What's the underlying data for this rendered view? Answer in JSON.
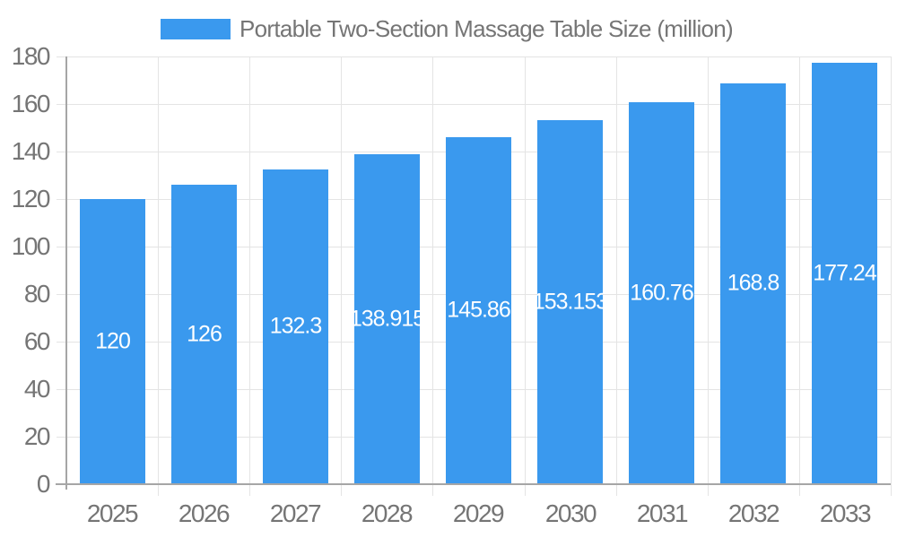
{
  "chart_data": {
    "type": "bar",
    "title": "Portable Two-Section Massage Table Size (million)",
    "categories": [
      "2025",
      "2026",
      "2027",
      "2028",
      "2029",
      "2030",
      "2031",
      "2032",
      "2033"
    ],
    "values": [
      120,
      126,
      132.3,
      138.915,
      145.86,
      153.153,
      160.76,
      168.8,
      177.24
    ],
    "value_labels": [
      "120",
      "126",
      "132.3",
      "138.915",
      "145.86",
      "153.153",
      "160.76",
      "168.8",
      "177.24"
    ],
    "xlabel": "",
    "ylabel": "",
    "ylim": [
      0,
      180
    ],
    "y_tick_step": 20,
    "y_tick_labels": [
      "0",
      "20",
      "40",
      "60",
      "80",
      "100",
      "120",
      "140",
      "160",
      "180"
    ],
    "grid": true,
    "legend_position": "top",
    "colors": {
      "bar": "#3A99EE",
      "axis": "#A6A6A6",
      "grid": "#E4E4E4",
      "tick_text": "#757575",
      "title_text": "#757575",
      "bar_label_text": "#FFFFFF",
      "background": "#FFFFFF"
    }
  }
}
